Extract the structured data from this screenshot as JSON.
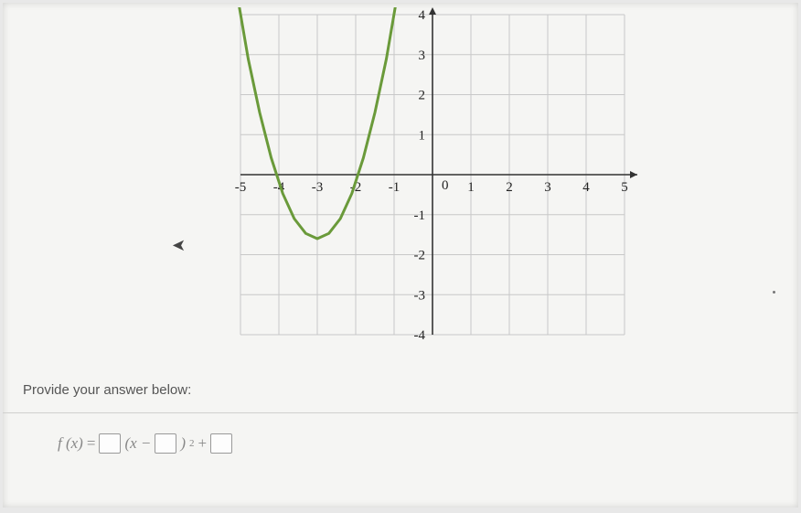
{
  "chart": {
    "type": "line",
    "xlim": [
      -5,
      5
    ],
    "ylim": [
      -4,
      4
    ],
    "xtick_step": 1,
    "ytick_step": 1,
    "xticks": [
      -5,
      -4,
      -3,
      -2,
      -1,
      0,
      1,
      2,
      3,
      4,
      5
    ],
    "yticks": [
      -4,
      -3,
      -2,
      -1,
      0,
      1,
      2,
      3,
      4
    ],
    "xtick_labels": [
      "-5",
      "-4",
      "-3",
      "-2",
      "-1",
      "0",
      "1",
      "2",
      "3",
      "4",
      "5"
    ],
    "ytick_labels": [
      "-4",
      "-3",
      "-2",
      "-1",
      "",
      "1",
      "2",
      "3",
      "4"
    ],
    "axis_color": "#333333",
    "grid_color": "#c8c8c8",
    "background_color": "#f5f5f3",
    "tick_font_size": 15,
    "tick_font_color": "#222222",
    "curve": {
      "color": "#6a9a3a",
      "width": 3,
      "vertex": {
        "x": -3,
        "y": -1.6
      },
      "a": 1.4,
      "samples": [
        {
          "x": -5.05,
          "y": 4.3
        },
        {
          "x": -4.8,
          "y": 2.9
        },
        {
          "x": -4.5,
          "y": 1.55
        },
        {
          "x": -4.2,
          "y": 0.42
        },
        {
          "x": -3.9,
          "y": -0.47
        },
        {
          "x": -3.6,
          "y": -1.1
        },
        {
          "x": -3.3,
          "y": -1.47
        },
        {
          "x": -3.0,
          "y": -1.6
        },
        {
          "x": -2.7,
          "y": -1.47
        },
        {
          "x": -2.4,
          "y": -1.1
        },
        {
          "x": -2.1,
          "y": -0.47
        },
        {
          "x": -1.8,
          "y": 0.42
        },
        {
          "x": -1.5,
          "y": 1.55
        },
        {
          "x": -1.2,
          "y": 2.9
        },
        {
          "x": -0.95,
          "y": 4.3
        }
      ]
    }
  },
  "prompt": {
    "label": "Provide your answer below:"
  },
  "equation": {
    "lhs": "f (x)",
    "equals": "=",
    "open": "(x −",
    "close": ")",
    "exp": "2",
    "plus": "+"
  }
}
